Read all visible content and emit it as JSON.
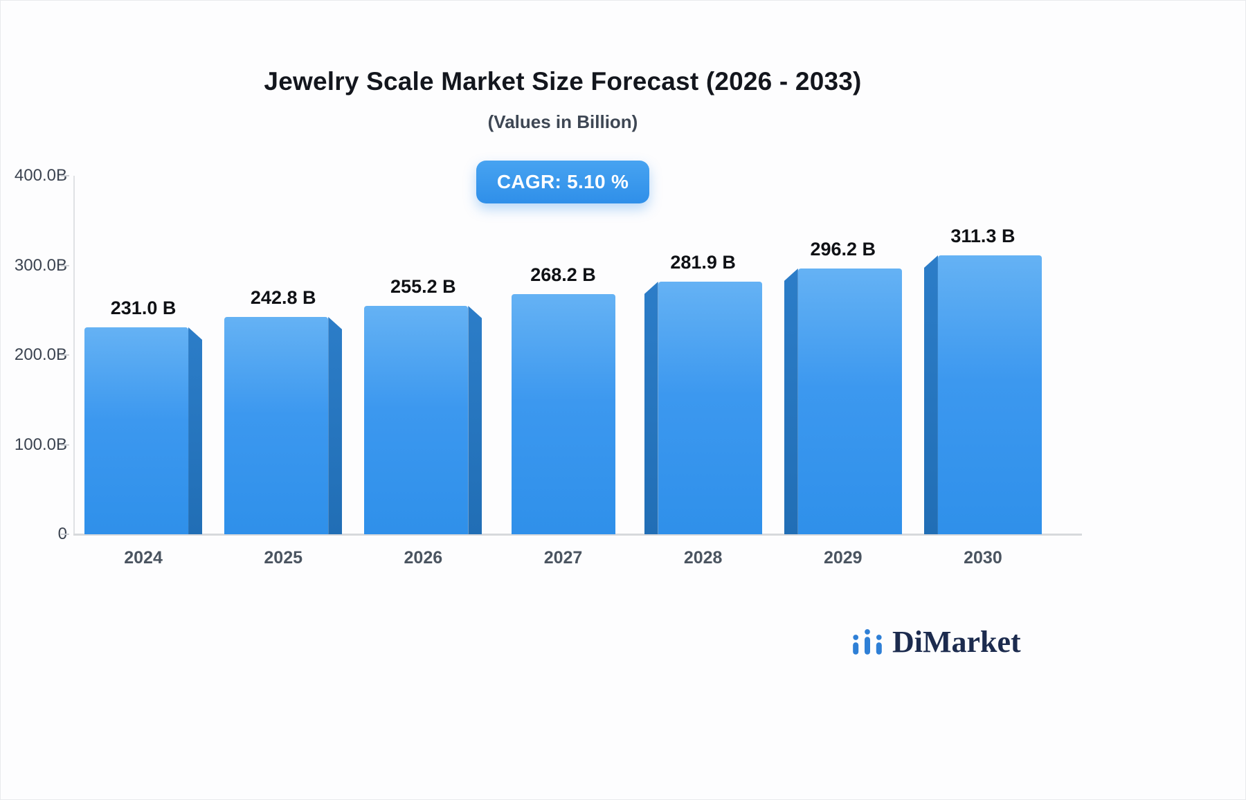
{
  "title": "Jewelry Scale Market Size Forecast (2026 - 2033)",
  "subtitle": "(Values in Billion)",
  "cagr_badge": "CAGR: 5.10 %",
  "chart_data": {
    "type": "bar",
    "categories": [
      "2024",
      "2025",
      "2026",
      "2027",
      "2028",
      "2029",
      "2030"
    ],
    "values": [
      231.0,
      242.8,
      255.2,
      268.2,
      281.9,
      296.2,
      311.3
    ],
    "value_labels": [
      "231.0 B",
      "242.8 B",
      "255.2 B",
      "268.2 B",
      "281.9 B",
      "296.2 B",
      "311.3 B"
    ],
    "sides": [
      "right",
      "right",
      "right",
      "none",
      "left",
      "left",
      "left"
    ],
    "title": "Jewelry Scale Market Size Forecast (2026 - 2033)",
    "xlabel": "",
    "ylabel": "",
    "ylim": [
      0,
      400
    ],
    "yticks": [
      "400.0B",
      "300.0B",
      "200.0B",
      "100.0B",
      "0"
    ],
    "grid": false,
    "legend": false,
    "bar_color_top": "#65b2f4",
    "bar_color_bottom": "#2f90ea",
    "bar_side_color": "#216eb5"
  },
  "logo": {
    "text": "DiMarket",
    "icon": "bar-chart-icon",
    "text_color": "#1c2b4e",
    "accent_color": "#2e7fd6"
  }
}
